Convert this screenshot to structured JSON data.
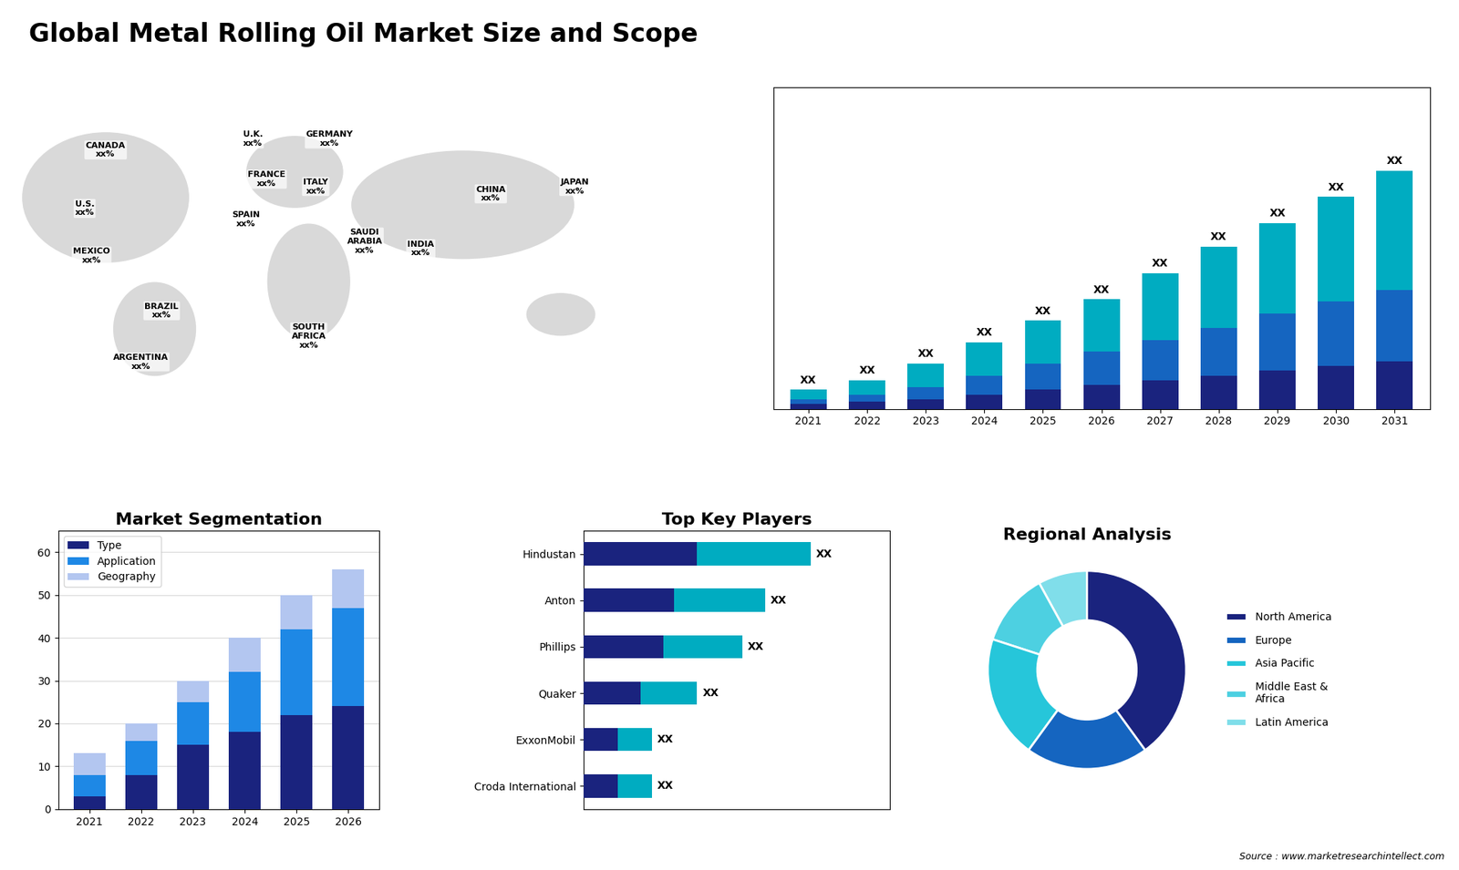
{
  "title": "Global Metal Rolling Oil Market Size and Scope",
  "annotations": [
    "Source : www.marketresearchintellect.com"
  ],
  "chart_data": [
    {
      "type": "map",
      "annotations": [
        "CANADA\nxx%",
        "U.S.\nxx%",
        "MEXICO\nxx%",
        "BRAZIL\nxx%",
        "ARGENTINA\nxx%",
        "U.K.\nxx%",
        "FRANCE\nxx%",
        "GERMANY\nxx%",
        "SPAIN\nxx%",
        "ITALY\nxx%",
        "SAUDI\nARABIA\nxx%",
        "SOUTH\nAFRICA\nxx%",
        "CHINA\nxx%",
        "INDIA\nxx%",
        "JAPAN\nxx%"
      ]
    },
    {
      "type": "bar",
      "stacked": true,
      "tick_labels": "x",
      "categories": [
        "2021",
        "2022",
        "2023",
        "2024",
        "2025",
        "2026",
        "2027",
        "2028",
        "2029",
        "2030",
        "2031"
      ],
      "series": [
        {
          "color": "#1a237e",
          "values": [
            1,
            1.5,
            2,
            3,
            4,
            5,
            6,
            7,
            8,
            9,
            10
          ]
        },
        {
          "color": "#1565c0",
          "values": [
            1,
            1.5,
            2.5,
            4,
            5.5,
            7,
            8.5,
            10,
            12,
            13.5,
            15
          ]
        },
        {
          "color": "#00acc1",
          "values": [
            2,
            3,
            5,
            7,
            9,
            11,
            14,
            17,
            19,
            22,
            25
          ]
        }
      ],
      "ylim": [
        0,
        67.5
      ],
      "annotations": [
        "XX",
        "XX",
        "XX",
        "XX",
        "XX",
        "XX",
        "XX",
        "XX",
        "XX",
        "XX",
        "XX"
      ]
    },
    {
      "type": "bar",
      "stacked": true,
      "title": "Market Segmentation",
      "categories": [
        "2021",
        "2022",
        "2023",
        "2024",
        "2025",
        "2026"
      ],
      "series": [
        {
          "name": "Type",
          "color": "#1a237e",
          "values": [
            3,
            8,
            15,
            18,
            22,
            24
          ]
        },
        {
          "name": "Application",
          "color": "#1e88e5",
          "values": [
            5,
            8,
            10,
            14,
            20,
            23
          ]
        },
        {
          "name": "Geography",
          "color": "#b3c6f0",
          "values": [
            5,
            4,
            5,
            8,
            8,
            9
          ]
        }
      ],
      "ylim": [
        0,
        65
      ],
      "yticks": [
        0,
        10,
        20,
        30,
        40,
        50,
        60
      ],
      "grid": true,
      "legend": "upper left"
    },
    {
      "type": "bar",
      "stacked": true,
      "orientation": "horizontal",
      "title": "Top Key Players",
      "tick_labels": "y",
      "categories": [
        "Hindustan",
        "Anton",
        "Phillips",
        "Quaker",
        "ExxonMobil",
        "Croda International"
      ],
      "series": [
        {
          "color": "#1a237e",
          "values": [
            5,
            4.0,
            3.5,
            2.5,
            1.5,
            1.5
          ]
        },
        {
          "color": "#00acc1",
          "values": [
            5,
            4.0,
            3.5,
            2.5,
            1.5,
            1.5
          ]
        }
      ],
      "xlim": [
        0,
        13.5
      ],
      "annotations": [
        "XX",
        "XX",
        "XX",
        "XX",
        "XX",
        "XX"
      ]
    },
    {
      "type": "pie",
      "title": "Regional Analysis",
      "legend": "center left",
      "categories": [
        "Latin America",
        "Middle East &\nAfrica",
        "Asia Pacific",
        "Europe",
        "North America"
      ],
      "values": [
        8,
        12,
        20,
        20,
        40
      ],
      "colors": [
        "#80deea",
        "#4dd0e1",
        "#26c6da",
        "#1565c0",
        "#1a237e"
      ]
    }
  ]
}
